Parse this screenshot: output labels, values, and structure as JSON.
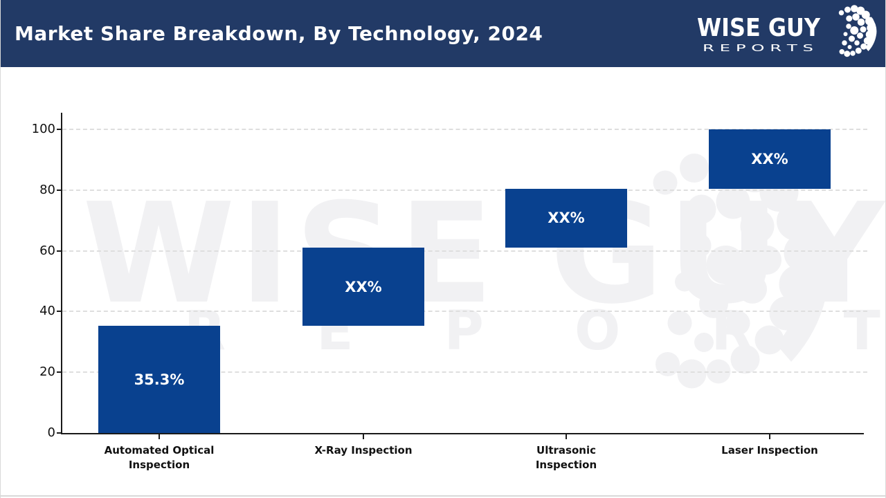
{
  "header": {
    "title": "Market Share Breakdown, By Technology, 2024",
    "logo": {
      "name": "WISE GUY",
      "tagline": "R E P O R T S"
    }
  },
  "watermark": {
    "name": "WISE GUY",
    "tagline": "R E P O R T S"
  },
  "colors": {
    "header_bg": "#223A66",
    "bar": "#09418F",
    "bar_label": "#FFFFFF",
    "grid": "#DEDEDE",
    "axis": "#1A1A1A",
    "watermark": "#F1F1F3"
  },
  "chart_data": {
    "type": "bar",
    "subtype": "waterfall",
    "title": "Market Share Breakdown, By Technology, 2024",
    "unit": "%",
    "categories": [
      "Automated Optical Inspection",
      "X-Ray Inspection",
      "Ultrasonic Inspection",
      "Laser Inspection"
    ],
    "category_label_lines": [
      [
        "Automated Optical",
        "Inspection"
      ],
      [
        "X-Ray Inspection"
      ],
      [
        "Ultrasonic",
        "Inspection"
      ],
      [
        "Laser Inspection"
      ]
    ],
    "segments": [
      {
        "category": "Automated Optical Inspection",
        "start": 0,
        "end": 35.3,
        "label": "35.3%"
      },
      {
        "category": "X-Ray Inspection",
        "start": 35.3,
        "end": 61.0,
        "label": "XX%"
      },
      {
        "category": "Ultrasonic Inspection",
        "start": 61.0,
        "end": 80.5,
        "label": "XX%"
      },
      {
        "category": "Laser Inspection",
        "start": 80.5,
        "end": 100.0,
        "label": "XX%"
      }
    ],
    "y_ticks": [
      0,
      20,
      40,
      60,
      80,
      100
    ],
    "ylim": [
      0,
      105.5
    ],
    "xlabel": "",
    "ylabel": "",
    "grid": "horizontal-dashed",
    "legend": "none"
  }
}
